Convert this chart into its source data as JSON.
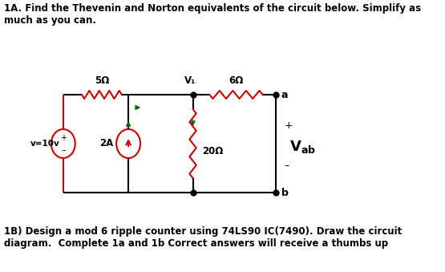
{
  "title_text": "1A. Find the Thevenin and Norton equivalents of the circuit below. Simplify as\nmuch as you can.",
  "bottom_text": "1B) Design a mod 6 ripple counter using 74LS90 IC(7490). Draw the circuit\ndiagram.  Complete 1a and 1b Correct answers will receive a thumbs up",
  "bg_color": "#ffffff",
  "text_color": "#000000",
  "circuit_color": "#000000",
  "red_color": "#cc0000",
  "green_color": "#006600",
  "label_5ohm": "5Ω",
  "label_6ohm": "6Ω",
  "label_20ohm": "20Ω",
  "label_v1": "V₁",
  "label_vs": "v=10v",
  "label_2A": "2A",
  "label_a": "a",
  "label_b": "b",
  "label_plus": "+",
  "label_minus": "-"
}
